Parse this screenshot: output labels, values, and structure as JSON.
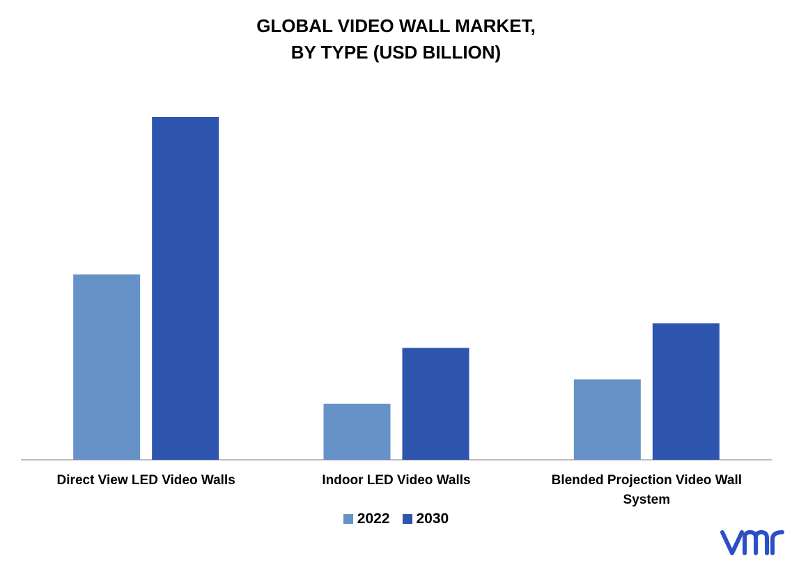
{
  "chart_data": {
    "type": "bar",
    "title_lines": [
      "GLOBAL VIDEO WALL MARKET,",
      "BY TYPE (USD BILLION)"
    ],
    "categories": [
      [
        "Direct View LED Video Walls"
      ],
      [
        "Indoor LED Video Walls"
      ],
      [
        "Blended Projection Video Wall",
        "System"
      ]
    ],
    "series": [
      {
        "name": "2022",
        "color": "#6792C8",
        "values": [
          5.3,
          1.6,
          2.3
        ]
      },
      {
        "name": "2030",
        "color": "#2E55AE",
        "values": [
          9.8,
          3.2,
          3.9
        ]
      }
    ],
    "ylim": [
      0,
      10
    ],
    "grid": false,
    "legend_position": "bottom"
  },
  "brand": {
    "logo_icon": "vmr-logo-icon",
    "color": "#2B4FC4"
  }
}
